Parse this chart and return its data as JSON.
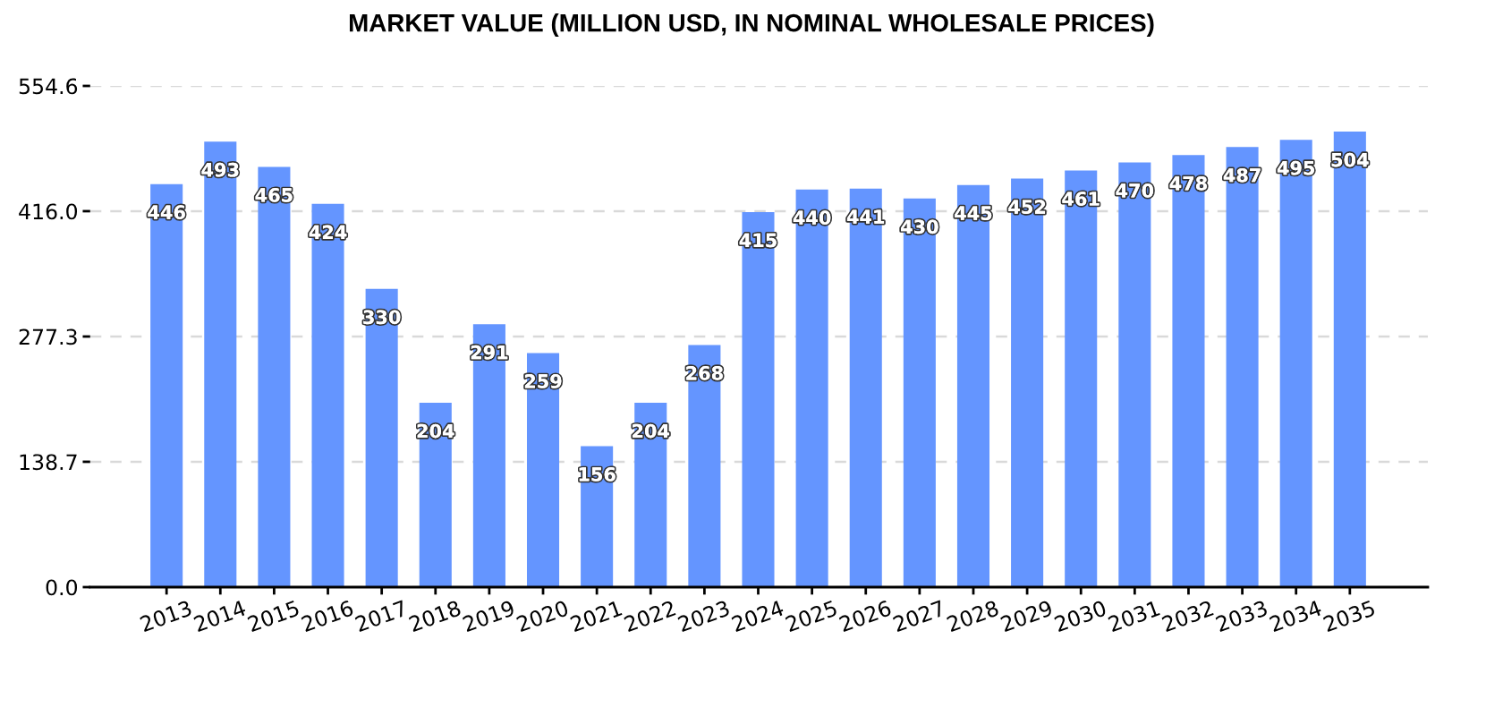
{
  "chart_data": {
    "type": "bar",
    "title": "MARKET VALUE (MILLION USD, IN NOMINAL WHOLESALE PRICES)",
    "categories": [
      "2013",
      "2014",
      "2015",
      "2016",
      "2017",
      "2018",
      "2019",
      "2020",
      "2021",
      "2022",
      "2023",
      "2024",
      "2025",
      "2026",
      "2027",
      "2028",
      "2029",
      "2030",
      "2031",
      "2032",
      "2033",
      "2034",
      "2035"
    ],
    "values": [
      446,
      493,
      465,
      424,
      330,
      204,
      291,
      259,
      156,
      204,
      268,
      415,
      440,
      441,
      430,
      445,
      452,
      461,
      470,
      478,
      487,
      495,
      504
    ],
    "color": "#6495ff",
    "ylim": [
      0,
      554.6
    ],
    "yticks": [
      {
        "value": 0,
        "label": "0.0"
      },
      138.7,
      277.3,
      {
        "value": 416,
        "label": "416.0"
      },
      554.6
    ],
    "grid": "y",
    "data_labels": true
  }
}
